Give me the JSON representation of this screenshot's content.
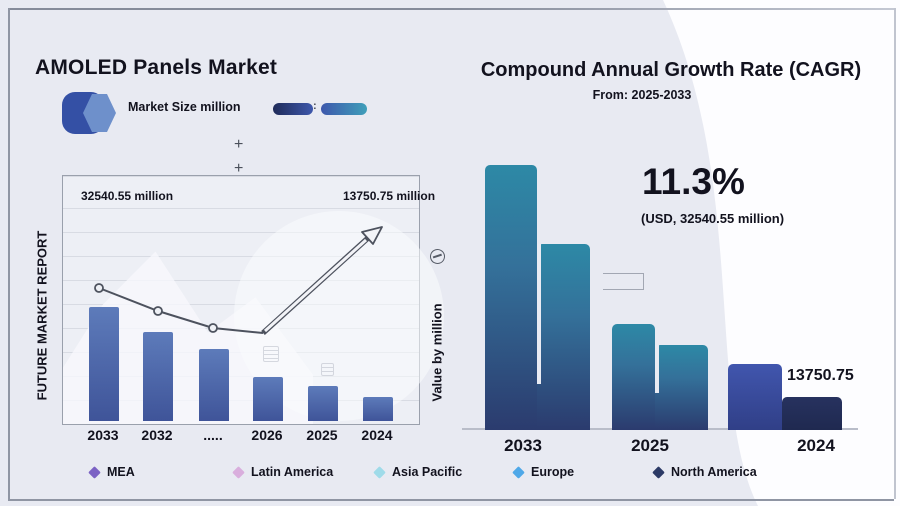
{
  "page": {
    "background": "#e8eaf2",
    "accent_dark": "#12121e"
  },
  "left_panel": {
    "title": "AMOLED Panels Market",
    "legend_label": "Market Size million",
    "decor_colon": ":",
    "plus_glyph": "+",
    "watermark_vertical": "FUTURE MARKET REPORT",
    "value_axis_label": "Value by million",
    "annotation_left": "32540.55 million",
    "annotation_right": "13750.75 million"
  },
  "right_panel": {
    "title": "Compound Annual Growth Rate (CAGR)",
    "subtitle": "From: 2025-2033",
    "cagr_value": "11.3%",
    "cagr_detail": "(USD, 32540.55 million)",
    "bar_label": "13750.75"
  },
  "legend": {
    "items": [
      {
        "label": "MEA",
        "color": "#7b62c4"
      },
      {
        "label": "Latin America",
        "color": "#d9aedd"
      },
      {
        "label": "Asia Pacific",
        "color": "#9fdbe9"
      },
      {
        "label": "Europe",
        "color": "#4fa8e8"
      },
      {
        "label": "North America",
        "color": "#2c3a66"
      }
    ]
  },
  "chart_data": [
    {
      "id": "market-size-by-year",
      "type": "bar",
      "title": "AMOLED Panels Market",
      "series_label": "Market Size million",
      "categories": [
        "2033",
        "2032",
        ".....",
        "2026",
        "2025",
        "2024"
      ],
      "bar_relative_heights": [
        1.0,
        0.78,
        0.63,
        0.39,
        0.31,
        0.21
      ],
      "known_values_million": {
        "2033": 32540.55,
        "2024": 13750.75
      },
      "ylabel": "Value by million",
      "grid": "horizontal",
      "overlay": {
        "trend_line_markers_over": [
          "2033",
          "2032",
          "....."
        ],
        "trend_line_shape": "line declines across first three bars, then an outlined arrow rises up-right toward the 13750.75 million annotation"
      }
    },
    {
      "id": "cagr-by-year",
      "type": "bar",
      "title": "Compound Annual Growth Rate (CAGR)",
      "subtitle": "From: 2025-2033",
      "cagr_percent": 11.3,
      "cagr_basis": "(USD, 32540.55 million)",
      "categories": [
        "2033",
        "2025",
        "2024"
      ],
      "series": [
        {
          "name": "bar-left",
          "relative_heights": [
            1.0,
            0.4,
            0.25
          ]
        },
        {
          "name": "bar-right",
          "relative_heights": [
            0.7,
            0.32,
            0.125
          ]
        }
      ],
      "data_label": {
        "category": "2024",
        "text": "13750.75"
      },
      "grid": "off"
    }
  ]
}
